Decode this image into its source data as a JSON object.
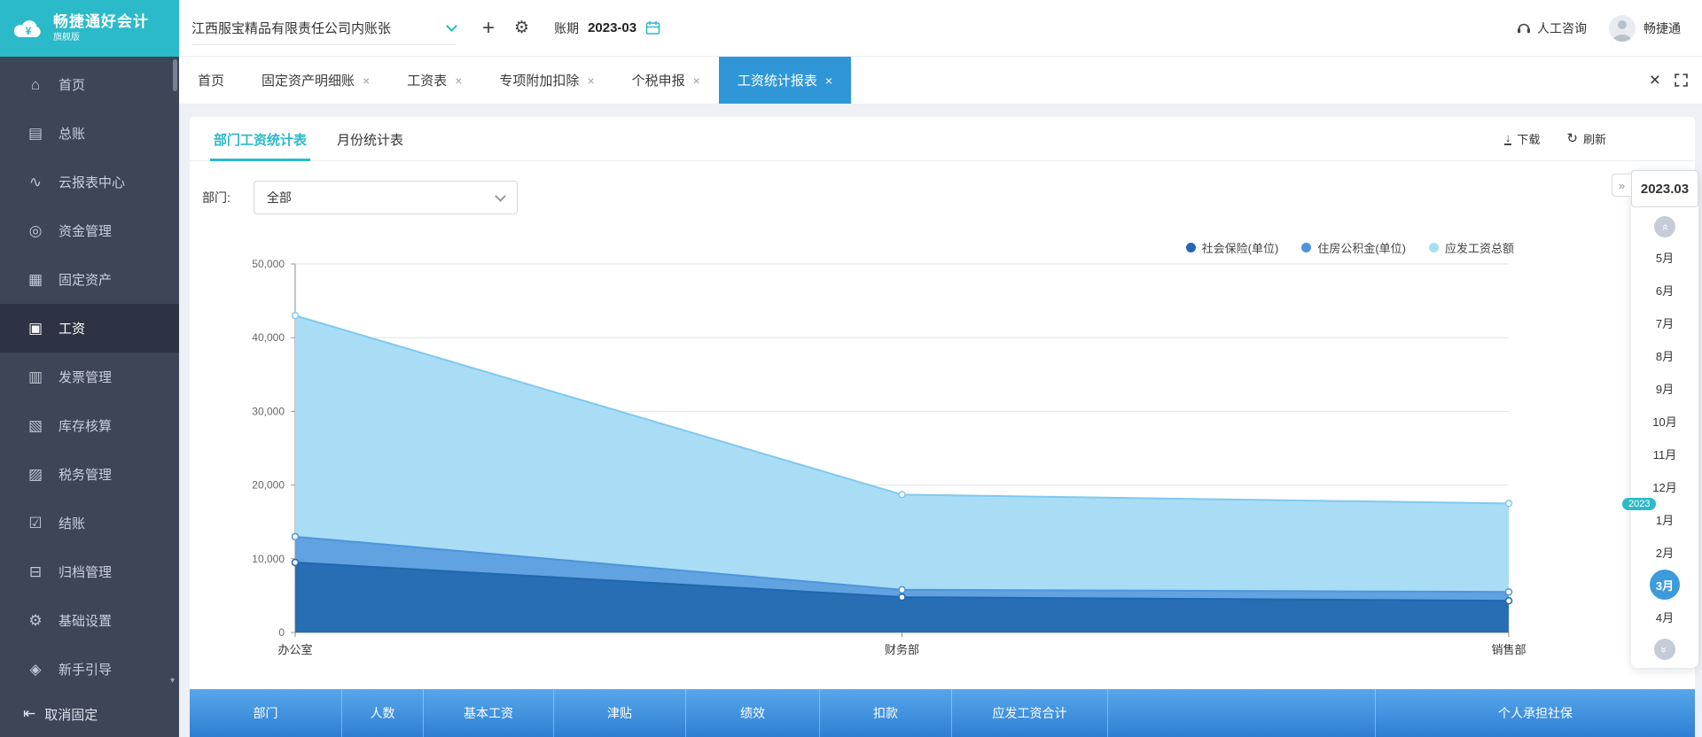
{
  "colors": {
    "accent_teal": "#2bbac9",
    "tab_active_blue": "#2f97d8",
    "month_active_blue": "#3d9bdc",
    "sidebar_bg": "#3d4557",
    "sidebar_active_bg": "#2d3342",
    "table_header_top": "#58a6ea",
    "table_header_bottom": "#2e7fd4",
    "content_bg": "#edf0f5"
  },
  "icons": {
    "tab_close": "×",
    "window_close": "×",
    "download_arrow": "↓",
    "refresh_arrow": "↻",
    "double_chevron": "»",
    "scroll_down_arrow": "▾",
    "pin_glyph": "⇤",
    "plus_glyph": "+",
    "gear_glyph": "⚙"
  },
  "app": {
    "brand_title": "畅捷通好会计",
    "brand_edition": "旗舰版",
    "company": "江西服宝精品有限责任公司内账张",
    "period_label": "账期",
    "period_value": "2023-03",
    "help_label": "人工咨询",
    "user_name": "畅捷通"
  },
  "sidebar": {
    "items": [
      {
        "id": "home",
        "label": "首页",
        "icon": "home-icon",
        "glyph": "⌂"
      },
      {
        "id": "general-ledger",
        "label": "总账",
        "icon": "ledger-icon",
        "glyph": "▤"
      },
      {
        "id": "cloud-report-center",
        "label": "云报表中心",
        "icon": "cloud-report-icon",
        "glyph": "∿"
      },
      {
        "id": "funds-management",
        "label": "资金管理",
        "icon": "funds-icon",
        "glyph": "◎"
      },
      {
        "id": "fixed-assets",
        "label": "固定资产",
        "icon": "fixed-assets-icon",
        "glyph": "▦"
      },
      {
        "id": "salary",
        "label": "工资",
        "icon": "salary-icon",
        "glyph": "▣",
        "active": true
      },
      {
        "id": "invoice-management",
        "label": "发票管理",
        "icon": "invoice-icon",
        "glyph": "▥"
      },
      {
        "id": "inventory-accounting",
        "label": "库存核算",
        "icon": "inventory-icon",
        "glyph": "▧"
      },
      {
        "id": "tax-management",
        "label": "税务管理",
        "icon": "tax-icon",
        "glyph": "▨"
      },
      {
        "id": "closing",
        "label": "结账",
        "icon": "closing-icon",
        "glyph": "☑"
      },
      {
        "id": "archive-management",
        "label": "归档管理",
        "icon": "archive-icon",
        "glyph": "⊟"
      },
      {
        "id": "basic-settings",
        "label": "基础设置",
        "icon": "settings-gear-icon",
        "glyph": "⚙"
      },
      {
        "id": "beginner-guide",
        "label": "新手引导",
        "icon": "guide-icon",
        "glyph": "◈"
      }
    ],
    "pin_label": "取消固定"
  },
  "tabs": {
    "items": [
      {
        "id": "home",
        "label": "首页",
        "closable": false
      },
      {
        "id": "fixed-asset-detail",
        "label": "固定资产明细账",
        "closable": true
      },
      {
        "id": "salary-sheet",
        "label": "工资表",
        "closable": true
      },
      {
        "id": "special-additional-deduction",
        "label": "专项附加扣除",
        "closable": true
      },
      {
        "id": "personal-tax-filing",
        "label": "个税申报",
        "closable": true
      },
      {
        "id": "salary-statistics-report",
        "label": "工资统计报表",
        "closable": true,
        "active": true
      }
    ]
  },
  "report": {
    "subtabs": [
      {
        "id": "department-salary-stats",
        "label": "部门工资统计表",
        "active": true
      },
      {
        "id": "monthly-stats",
        "label": "月份统计表",
        "active": false
      }
    ],
    "download_label": "下载",
    "refresh_label": "刷新",
    "filter_label": "部门:",
    "filter_value": "全部"
  },
  "chart_data": {
    "type": "area",
    "categories": [
      "办公室",
      "财务部",
      "销售部"
    ],
    "series": [
      {
        "name": "社会保险(单位)",
        "values": [
          9500,
          4800,
          4300
        ],
        "color": "#2268b0",
        "line_color": "#1f67b0",
        "fill_opacity": 0.9
      },
      {
        "name": "住房公积金(单位)",
        "values": [
          13000,
          5800,
          5500
        ],
        "color": "#4f94db",
        "line_color": "#4f94db",
        "fill_opacity": 0.8
      },
      {
        "name": "应发工资总额",
        "values": [
          43000,
          18700,
          17500
        ],
        "color": "#a9ddf6",
        "line_color": "#7fc9ee",
        "fill_opacity": 1
      }
    ],
    "ylim": [
      0,
      50000
    ],
    "ytick_step": 10000,
    "grid": true,
    "legend_position": "top-right",
    "xlabel": "",
    "ylabel": ""
  },
  "table": {
    "columns": [
      "部门",
      "人数",
      "基本工资",
      "津贴",
      "绩效",
      "扣款",
      "应发工资合计",
      "个人承担社保"
    ]
  },
  "month_panel": {
    "current": "2023.03",
    "year_badge": "2023",
    "months": [
      "5月",
      "6月",
      "7月",
      "8月",
      "9月",
      "10月",
      "11月",
      "12月",
      "1月",
      "2月",
      "3月",
      "4月"
    ],
    "active_month": "3月"
  }
}
